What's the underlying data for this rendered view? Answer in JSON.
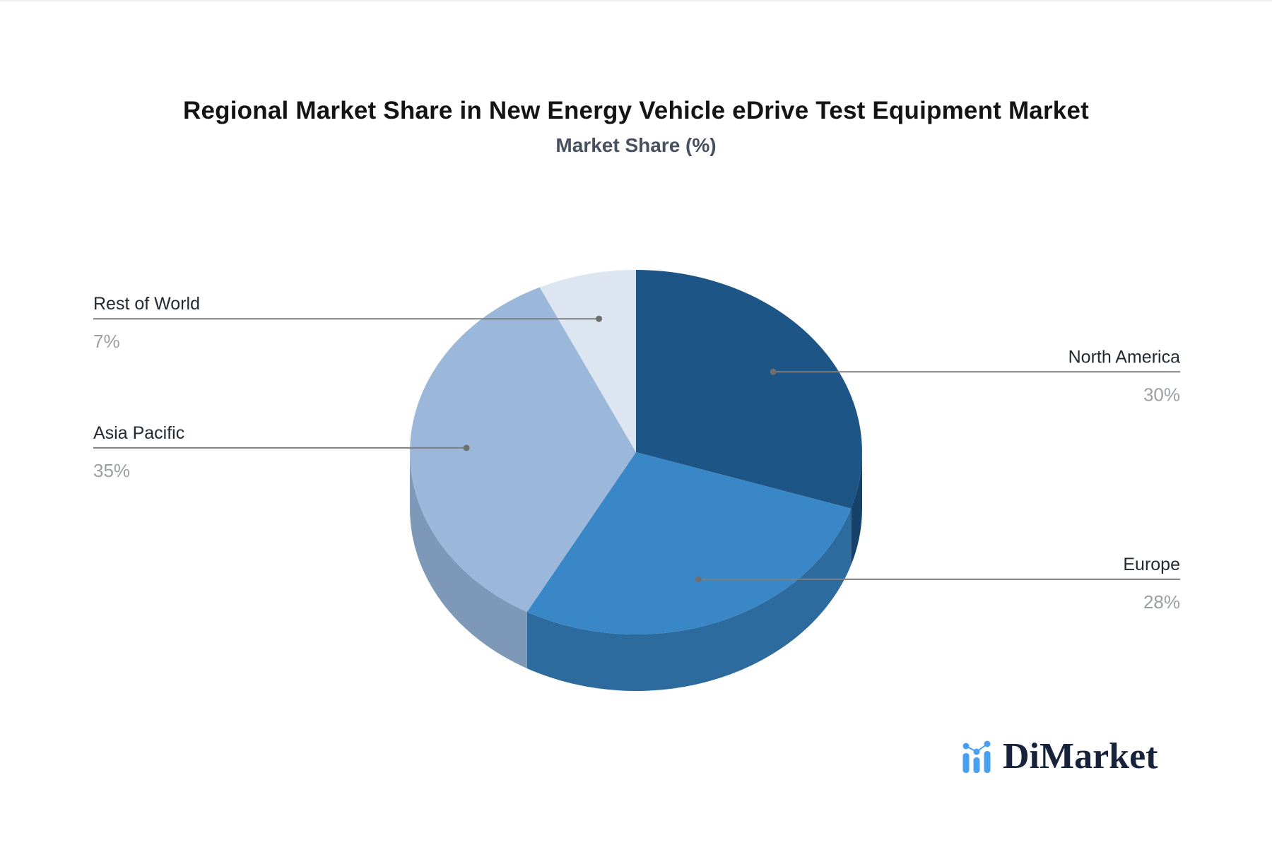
{
  "header": {
    "title": "Regional Market Share in New Energy Vehicle eDrive Test Equipment Market",
    "subtitle": "Market Share (%)"
  },
  "chart_data": {
    "type": "pie",
    "three_d": true,
    "title": "Regional Market Share in New Energy Vehicle eDrive Test Equipment Market",
    "subtitle": "Market Share (%)",
    "unit": "%",
    "start_angle": "12-oclock",
    "direction": "clockwise",
    "legend_position": "none",
    "categories": [
      "North America",
      "Europe",
      "Asia Pacific",
      "Rest of World"
    ],
    "values": [
      30,
      28,
      35,
      7
    ],
    "slices": [
      {
        "label": "North America",
        "value": 30,
        "display": "30%",
        "color": "#1D5586",
        "side_color": "#15426A",
        "label_side": "right"
      },
      {
        "label": "Europe",
        "value": 28,
        "display": "28%",
        "color": "#3A87C8",
        "side_color": "#2D6B9E",
        "label_side": "right"
      },
      {
        "label": "Asia Pacific",
        "value": 35,
        "display": "35%",
        "color": "#9BB8DB",
        "side_color": "#7E99B8",
        "label_side": "left"
      },
      {
        "label": "Rest of World",
        "value": 7,
        "display": "7%",
        "color": "#DCE5F0",
        "side_color": "#B5C3D8",
        "label_side": "left"
      }
    ],
    "style": {
      "label_color": "#222a33",
      "value_color": "#9b9ea3",
      "line_color": "#7f7f7f",
      "dot_color": "#6f6f6f"
    }
  },
  "logo": {
    "text": "DiMarket",
    "icon": "bar-chart-icon",
    "text_color": "#16233b",
    "icon_color": "#4aa0f0"
  }
}
